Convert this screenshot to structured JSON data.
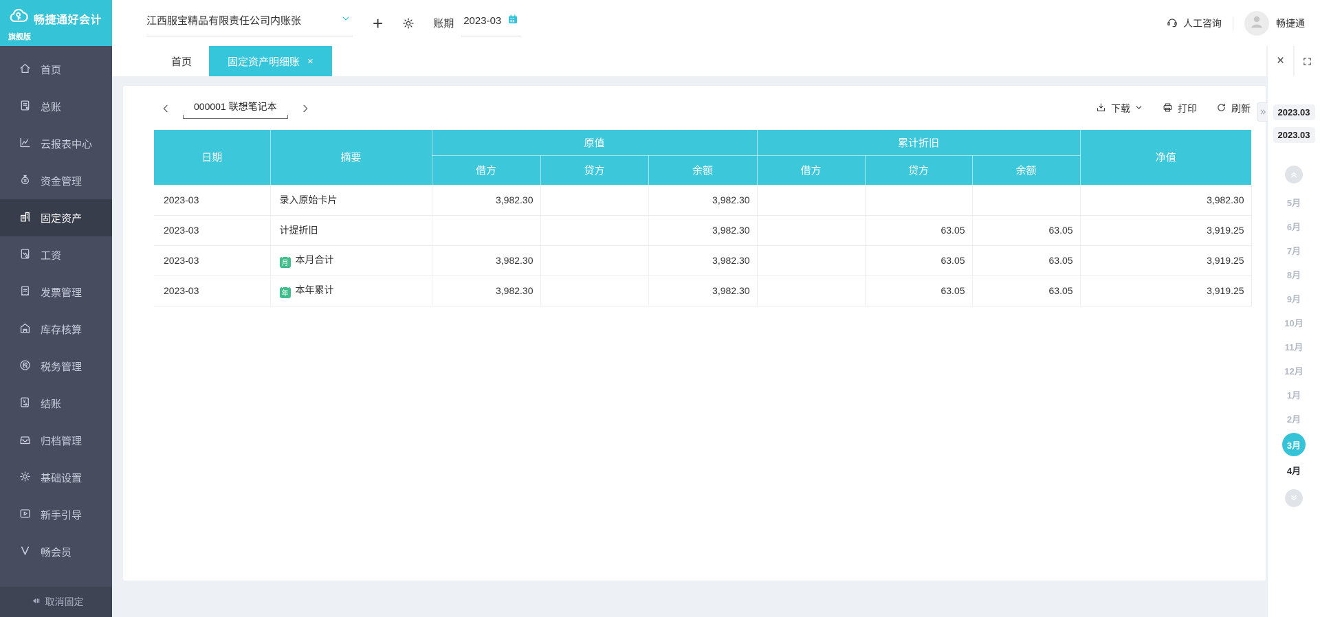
{
  "app": {
    "logo_title": "畅捷通好会计",
    "logo_subtitle": "旗舰版"
  },
  "header": {
    "company": "江西服宝精品有限责任公司内账张",
    "period_label": "账期",
    "period_value": "2023-03",
    "support": "人工咨询",
    "username": "畅捷通"
  },
  "sidebar": {
    "items": [
      {
        "label": "首页",
        "icon": "home"
      },
      {
        "label": "总账",
        "icon": "ledger"
      },
      {
        "label": "云报表中心",
        "icon": "report"
      },
      {
        "label": "资金管理",
        "icon": "money"
      },
      {
        "label": "固定资产",
        "icon": "asset",
        "active": true
      },
      {
        "label": "工资",
        "icon": "salary"
      },
      {
        "label": "发票管理",
        "icon": "invoice"
      },
      {
        "label": "库存核算",
        "icon": "inventory"
      },
      {
        "label": "税务管理",
        "icon": "tax"
      },
      {
        "label": "结账",
        "icon": "closing"
      },
      {
        "label": "归档管理",
        "icon": "archive"
      },
      {
        "label": "基础设置",
        "icon": "settings"
      },
      {
        "label": "新手引导",
        "icon": "guide"
      },
      {
        "label": "畅会员",
        "icon": "member"
      }
    ],
    "pin_label": "取消固定"
  },
  "tabs": [
    {
      "label": "首页",
      "active": false
    },
    {
      "label": "固定资产明细账",
      "active": true,
      "close": "×"
    }
  ],
  "toolbar": {
    "asset_selector": "000001  联想笔记本",
    "download": "下载",
    "print": "打印",
    "refresh": "刷新"
  },
  "table": {
    "col_date": "日期",
    "col_summary": "摘要",
    "group_original": "原值",
    "group_depreciation": "累计折旧",
    "col_net": "净值",
    "sub_debit": "借方",
    "sub_credit": "贷方",
    "sub_balance": "余额",
    "rows": [
      {
        "date": "2023-03",
        "summary": "录入原始卡片",
        "icon": "",
        "ov_debit": "3,982.30",
        "ov_credit": "",
        "ov_balance": "3,982.30",
        "dep_debit": "",
        "dep_credit": "",
        "dep_balance": "",
        "net": "3,982.30"
      },
      {
        "date": "2023-03",
        "summary": "计提折旧",
        "icon": "",
        "ov_debit": "",
        "ov_credit": "",
        "ov_balance": "3,982.30",
        "dep_debit": "",
        "dep_credit": "63.05",
        "dep_balance": "63.05",
        "net": "3,919.25"
      },
      {
        "date": "2023-03",
        "summary": "本月合计",
        "icon": "月",
        "ov_debit": "3,982.30",
        "ov_credit": "",
        "ov_balance": "3,982.30",
        "dep_debit": "",
        "dep_credit": "63.05",
        "dep_balance": "63.05",
        "net": "3,919.25"
      },
      {
        "date": "2023-03",
        "summary": "本年累计",
        "icon": "年",
        "ov_debit": "3,982.30",
        "ov_credit": "",
        "ov_balance": "3,982.30",
        "dep_debit": "",
        "dep_credit": "63.05",
        "dep_balance": "63.05",
        "net": "3,919.25"
      }
    ]
  },
  "period_panel": {
    "from": "2023.03",
    "to": "2023.03",
    "year_badge": "2023",
    "months": [
      {
        "label": "5月"
      },
      {
        "label": "6月"
      },
      {
        "label": "7月"
      },
      {
        "label": "8月"
      },
      {
        "label": "9月"
      },
      {
        "label": "10月"
      },
      {
        "label": "11月"
      },
      {
        "label": "12月"
      },
      {
        "label": "1月",
        "year_badge": true
      },
      {
        "label": "2月"
      },
      {
        "label": "3月",
        "selected": true
      },
      {
        "label": "4月",
        "emphasis": true
      }
    ]
  },
  "colors": {
    "accent_teal": "#35C3D8",
    "table_header_teal": "#3CC7DB",
    "sidebar_bg": "#474C5F",
    "sidebar_active_bg": "#383D4C",
    "page_bg": "#EDF0F4",
    "year_badge_green": "#8CC63F",
    "summary_badge_green": "#3FBE8C"
  }
}
